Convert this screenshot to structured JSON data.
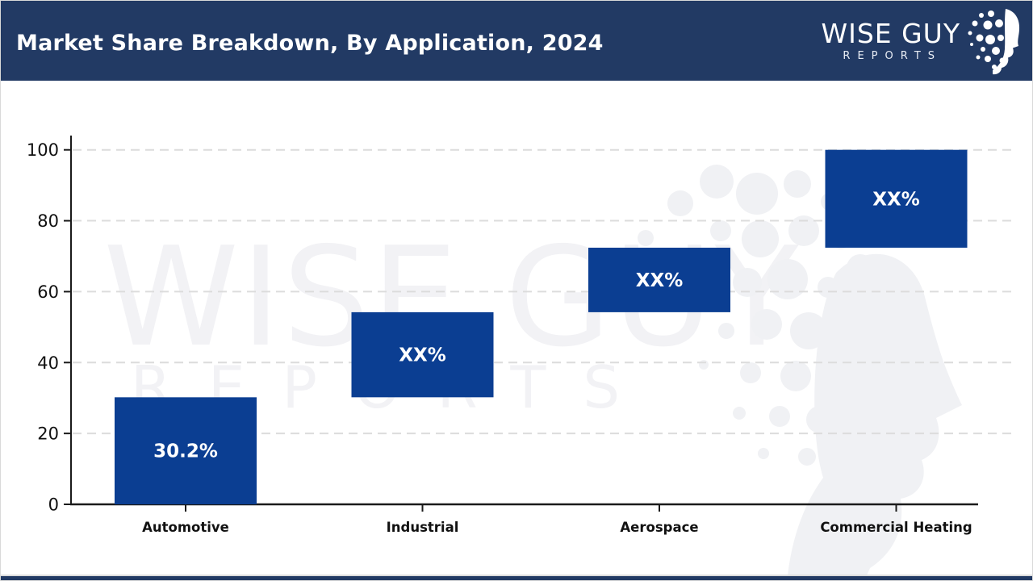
{
  "header": {
    "title": "Market Share Breakdown, By Application, 2024",
    "bg_color": "#223A64",
    "logo": {
      "wordmark": "WISE GUY",
      "subtext": "REPORTS"
    }
  },
  "watermark": {
    "line1": "WISE GUY",
    "line2": "REPORTS"
  },
  "chart_data": {
    "type": "bar",
    "subtype": "waterfall-floating-bars",
    "title": "Market Share Breakdown, By Application, 2024",
    "categories": [
      "Automotive",
      "Industrial",
      "Aerospace",
      "Commercial Heating"
    ],
    "bars": [
      {
        "category": "Automotive",
        "start": 0,
        "end": 30.2,
        "label": "30.2%"
      },
      {
        "category": "Industrial",
        "start": 30.2,
        "end": 54.2,
        "label": "XX%"
      },
      {
        "category": "Aerospace",
        "start": 54.2,
        "end": 72.4,
        "label": "XX%"
      },
      {
        "category": "Commercial Heating",
        "start": 72.4,
        "end": 100,
        "label": "XX%"
      }
    ],
    "xlabel": "",
    "ylabel": "",
    "ylim": [
      0,
      100
    ],
    "yticks": [
      0,
      20,
      40,
      60,
      80,
      100
    ],
    "grid": "horizontal-dashed",
    "legend": "none",
    "bar_color": "#0B3E92",
    "bar_label_color": "#FFFFFF",
    "axis_color": "#1A1A1A",
    "grid_color": "#DCDCDC",
    "tick_label_color": "#111111"
  }
}
